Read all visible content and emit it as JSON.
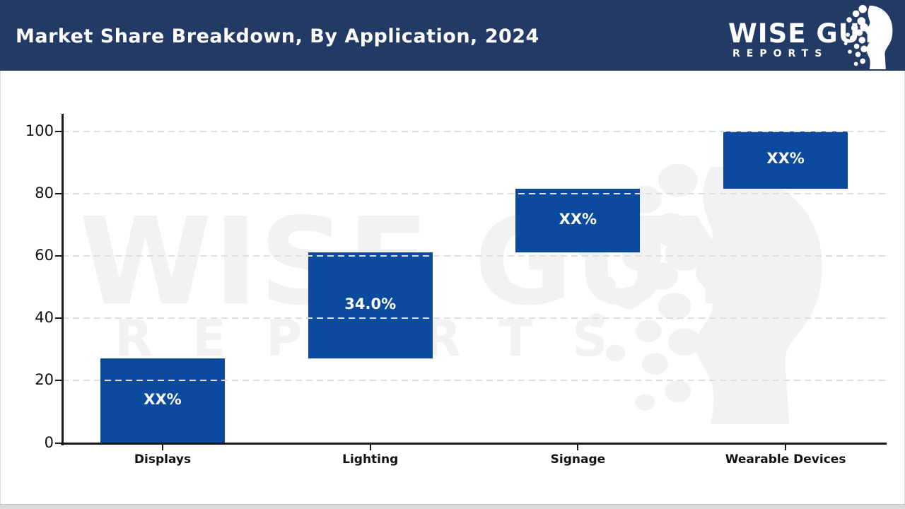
{
  "header": {
    "title": "Market Share Breakdown, By Application, 2024",
    "logo": {
      "line1": "WISE GUY",
      "line2": "REPORTS"
    }
  },
  "watermark": {
    "line1": "WISE GUY",
    "line2": "REPORTS"
  },
  "chart_data": {
    "type": "bar",
    "subtype": "floating-waterfall",
    "title": "Market Share Breakdown, By Application, 2024",
    "categories": [
      "Displays",
      "Lighting",
      "Signage",
      "Wearable Devices"
    ],
    "bars": [
      {
        "category": "Displays",
        "start": 0,
        "end": 27,
        "value": 27,
        "label": "XX%"
      },
      {
        "category": "Lighting",
        "start": 27,
        "end": 61,
        "value": 34.0,
        "label": "34.0%"
      },
      {
        "category": "Signage",
        "start": 61,
        "end": 81.5,
        "value": 20.5,
        "label": "XX%"
      },
      {
        "category": "Wearable Devices",
        "start": 81.5,
        "end": 100,
        "value": 18.5,
        "label": "XX%"
      }
    ],
    "y_ticks": [
      0,
      20,
      40,
      60,
      80,
      100
    ],
    "ylim": [
      0,
      105
    ],
    "xlabel": "",
    "ylabel": "",
    "grid": "horizontal-dashed",
    "legend": "none",
    "colors": {
      "bar": "#0B4A9E",
      "header": "#213A66",
      "grid": "#DEDEDE",
      "axis": "#1A1A1A",
      "bar_label_text": "#FFFFFF",
      "watermark": "#F2F2F4"
    }
  }
}
